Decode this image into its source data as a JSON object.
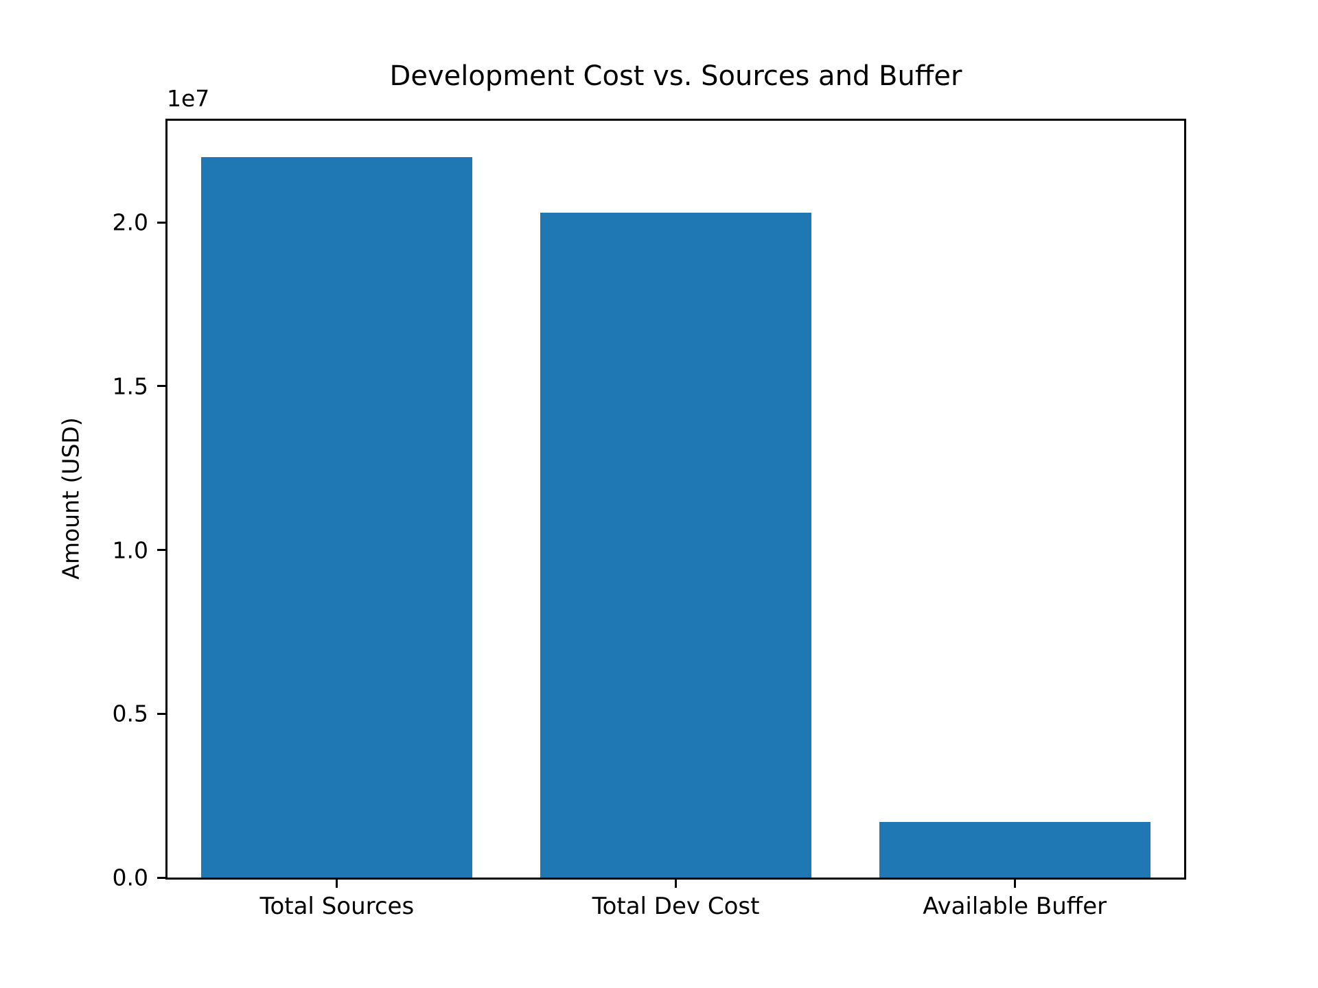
{
  "figure": {
    "title": "Development Cost vs. Sources and Buffer",
    "ylabel": "Amount (USD)",
    "scale_offset_label": "1e7"
  },
  "chart_data": {
    "type": "bar",
    "title": "Development Cost vs. Sources and Buffer",
    "xlabel": "",
    "ylabel": "Amount (USD)",
    "categories": [
      "Total Sources",
      "Total Dev Cost",
      "Available Buffer"
    ],
    "values": [
      22000000,
      20300000,
      1700000
    ],
    "ylim": [
      0,
      23100000
    ],
    "yticks": {
      "values": [
        0,
        5000000,
        10000000,
        15000000,
        20000000
      ],
      "labels": [
        "0.0",
        "0.5",
        "1.0",
        "1.5",
        "2.0"
      ]
    },
    "y_scale_offset": "1e7",
    "bar_color": "#1f77b4",
    "bar_width_fraction": 0.8,
    "grid": false,
    "legend_position": "none",
    "spine_color": "#000000",
    "background_color": "#ffffff"
  }
}
